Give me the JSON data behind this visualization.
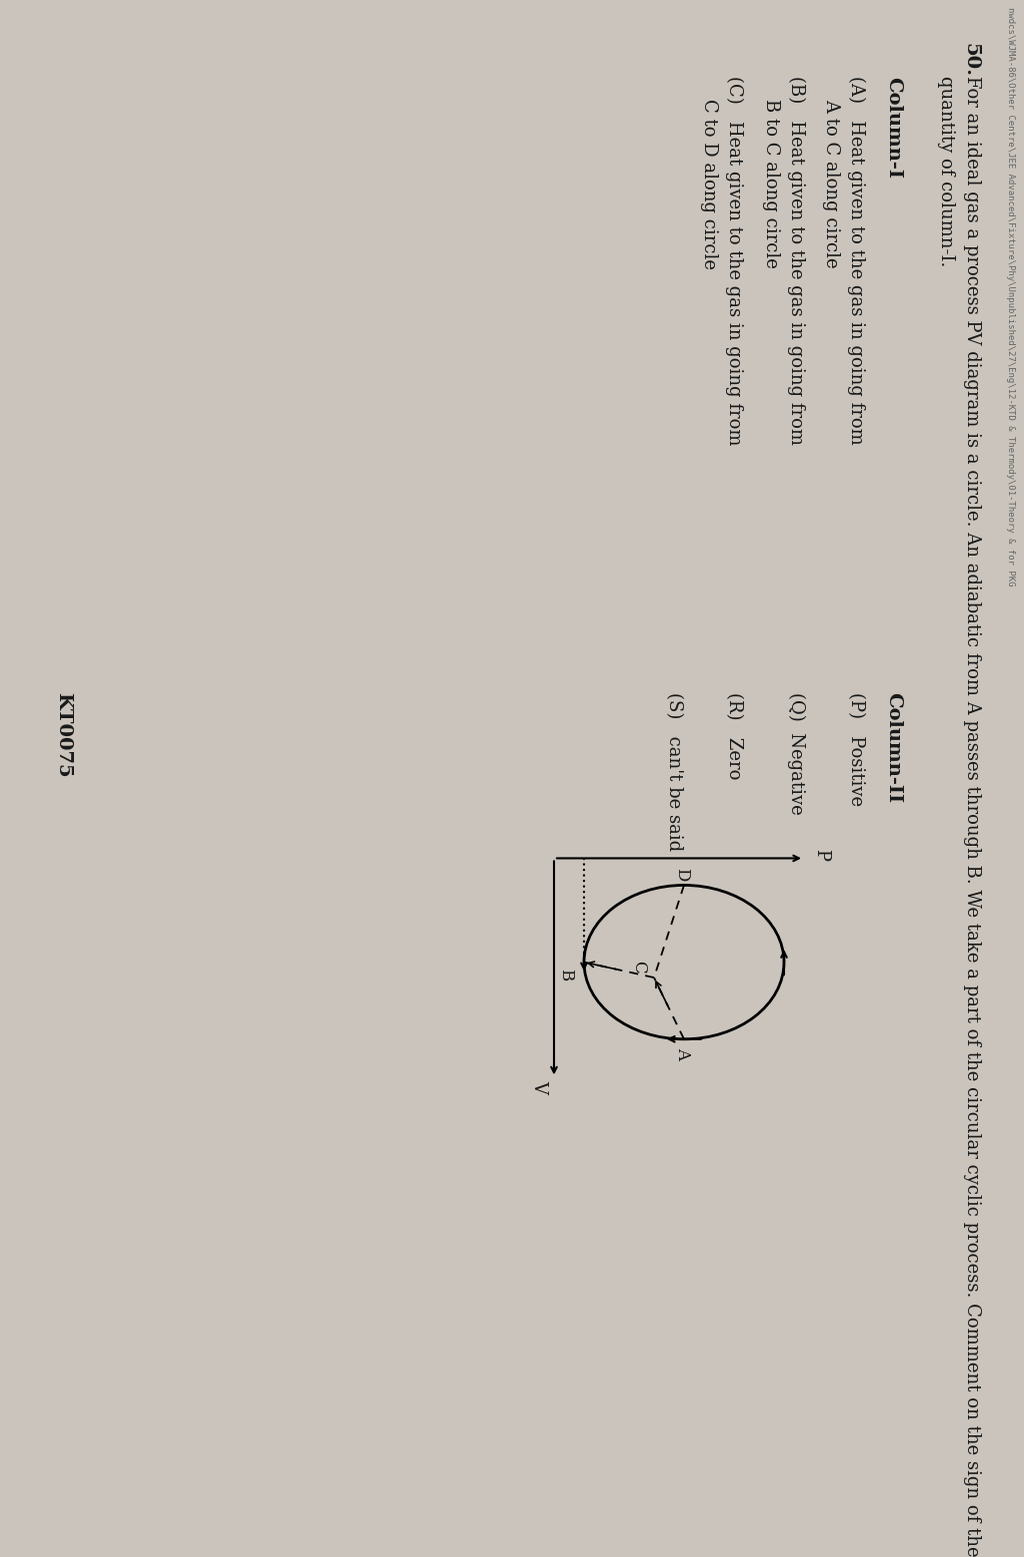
{
  "bg_color": "#cac4bc",
  "header": "nwdcs\\WJMA-86\\Other Centre\\JEE Advanced\\Fixture\\Phy\\Unpublished\\27\\Eng\\12-KTD & Thermody\\01-Theory & for PKG",
  "q_num": "50.",
  "q_line1": "For an ideal gas a process PV diagram is a circle. An adiabatic from A passes through B. We take a part of the circular cyclic process. Comment on the sign of the",
  "q_line2": "quantity of column-I.",
  "col1_title": "Column-I",
  "col2_title": "Column-II",
  "col1_A1": "(A)   Heat given to the gas in going from",
  "col1_A2": "A to C along circle",
  "col1_B1": "(B)   Heat given to the gas in going from",
  "col1_B2": "B to C along circle",
  "col1_C1": "(C)   Heat given to the gas in going from",
  "col1_C2": "C to D along circle",
  "col2_P": "(P)   Positive",
  "col2_Q": "(Q)  Negative",
  "col2_R": "(R)   Zero",
  "col2_S": "(S)   can't be said",
  "footer": "KT0075",
  "text_color": "#1a1a1a",
  "text_color_dark": "#111111"
}
